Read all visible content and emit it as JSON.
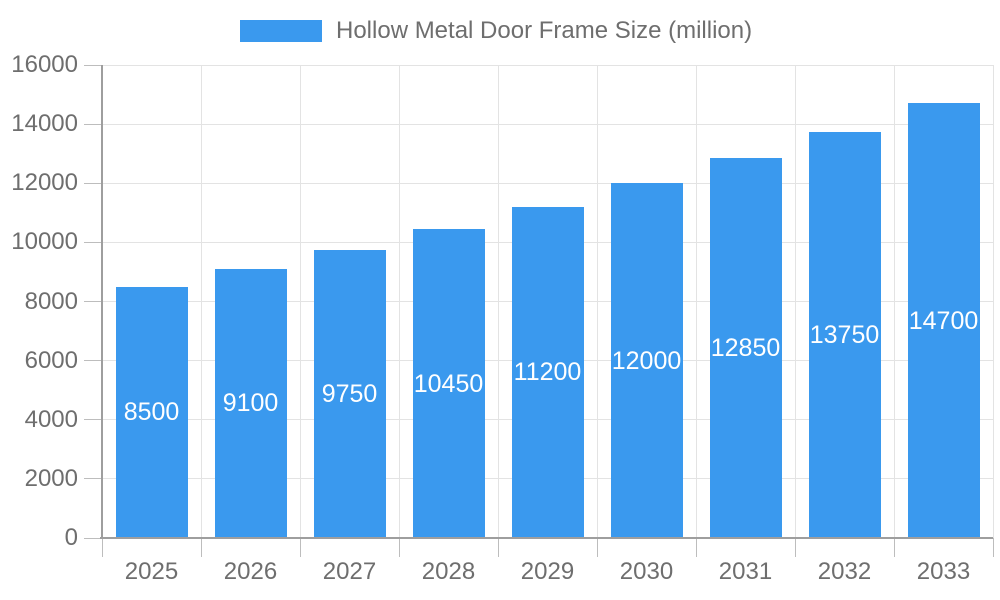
{
  "chart_data": {
    "type": "bar",
    "series_name": "Hollow Metal Door Frame Size (million)",
    "categories": [
      "2025",
      "2026",
      "2027",
      "2028",
      "2029",
      "2030",
      "2031",
      "2032",
      "2033"
    ],
    "values": [
      8500,
      9100,
      9750,
      10450,
      11200,
      12000,
      12850,
      13750,
      14700
    ],
    "title": "Hollow Metal Door Frame Size (million)",
    "xlabel": "",
    "ylabel": "",
    "ylim": [
      0,
      16000
    ],
    "ytick_step": 2000,
    "ytick_labels": [
      "0",
      "2000",
      "4000",
      "6000",
      "8000",
      "10000",
      "12000",
      "14000",
      "16000"
    ],
    "grid": true,
    "legend_position": "top-center",
    "bar_color": "#3A99EE",
    "value_label_color": "#FFFFFF",
    "axis_text_color": "#6e6e6e"
  }
}
